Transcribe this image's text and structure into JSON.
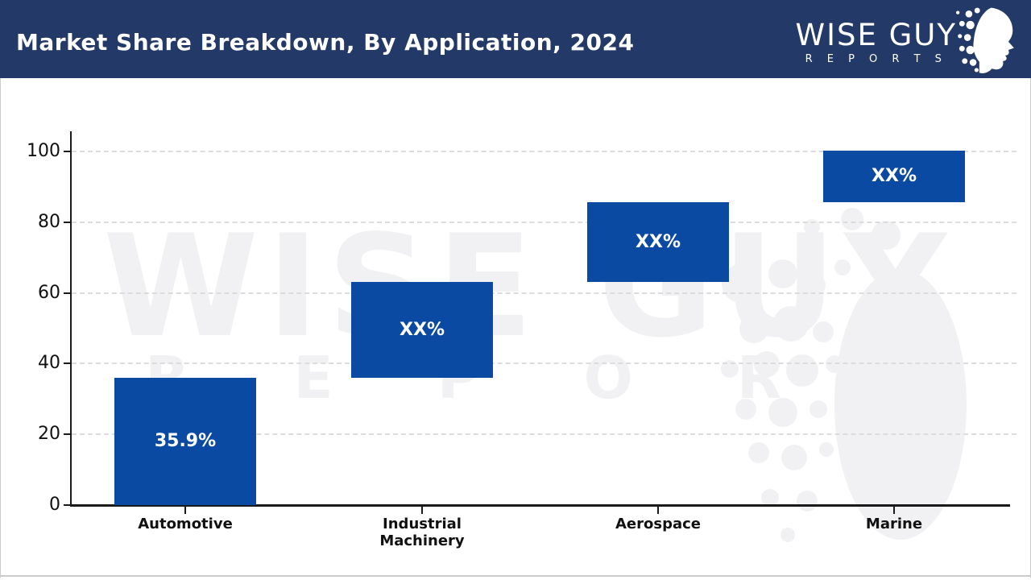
{
  "header": {
    "title": "Market Share Breakdown, By Application, 2024",
    "logo": {
      "line1": "WISE GUY",
      "line2": "R E P O R T S"
    }
  },
  "watermark": {
    "line1": "WISE GUY",
    "line2": "R E P O R T S"
  },
  "chart_data": {
    "type": "bar",
    "subtype": "floating-waterfall",
    "title": "Market Share Breakdown, By Application, 2024",
    "categories": [
      "Automotive",
      "Industrial Machinery",
      "Aerospace",
      "Marine"
    ],
    "segments": [
      {
        "category": "Automotive",
        "start": 0,
        "end": 35.9,
        "label": "35.9%"
      },
      {
        "category": "Industrial Machinery",
        "start": 35.9,
        "end": 63.1,
        "label": "XX%"
      },
      {
        "category": "Aerospace",
        "start": 63.1,
        "end": 85.6,
        "label": "XX%"
      },
      {
        "category": "Marine",
        "start": 85.6,
        "end": 100.3,
        "label": "XX%"
      }
    ],
    "yticks": [
      0,
      20,
      40,
      60,
      80,
      100
    ],
    "ylim": [
      0,
      105
    ],
    "xlabel": "",
    "ylabel": "",
    "grid": "horizontal-dashed",
    "legend": "none"
  },
  "colors": {
    "header_bg": "#233967",
    "bar": "#0b4aa2",
    "bar_label": "#ffffff",
    "axis": "#1a1a1a",
    "gridline": "#dcdcdc",
    "watermark": "#f1f1f4"
  }
}
